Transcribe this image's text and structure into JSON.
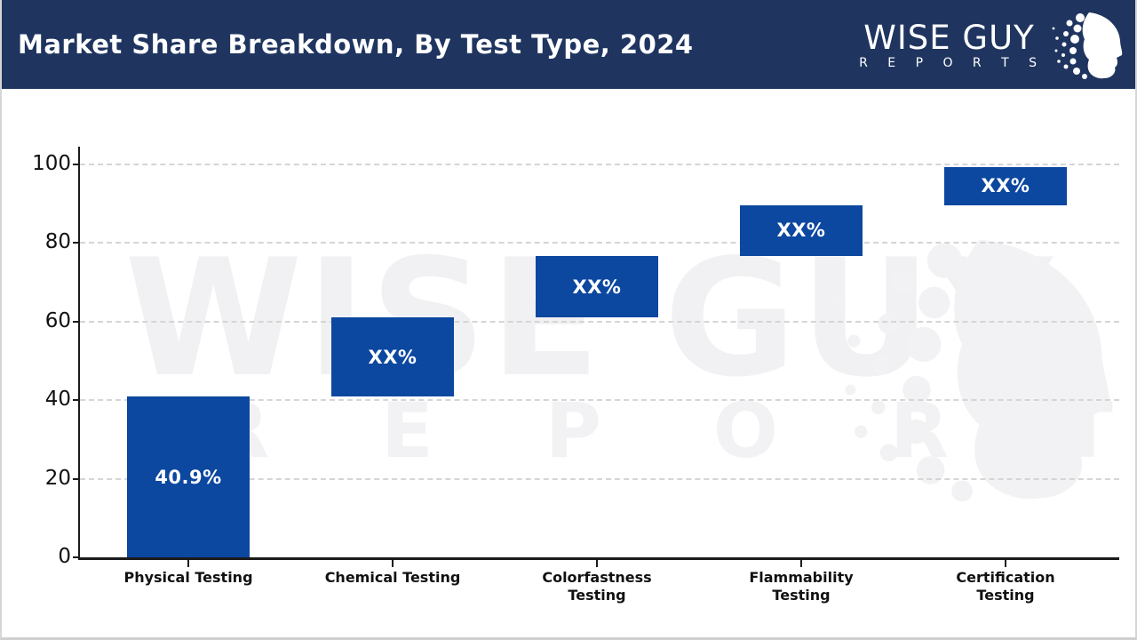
{
  "header": {
    "title": "Market Share Breakdown, By Test Type, 2024",
    "logo": {
      "wordmark": "WISE GUY",
      "subtext": "R E P O R T S",
      "face_icon": "dotted-head-profile"
    }
  },
  "watermark": {
    "line1": "WISE GUY",
    "line2": "R E P O R T S",
    "face_icon": "dotted-head-profile"
  },
  "colors": {
    "header_bg": "#1f3560",
    "bar": "#0c47a0",
    "bar_label": "#ffffff",
    "grid": "#d5d5d5",
    "axis": "#1a1a1a",
    "watermark": "#f1f1f3"
  },
  "chart_data": {
    "type": "bar",
    "variant": "waterfall",
    "title": "Market Share Breakdown, By Test Type, 2024",
    "categories": [
      "Physical Testing",
      "Chemical Testing",
      "Colorfastness Testing",
      "Flammability Testing",
      "Certification Testing"
    ],
    "category_label_lines": [
      [
        "Physical Testing"
      ],
      [
        "Chemical Testing"
      ],
      [
        "Colorfastness",
        "Testing"
      ],
      [
        "Flammability",
        "Testing"
      ],
      [
        "Certification",
        "Testing"
      ]
    ],
    "series": [
      {
        "name": "Market share (%)",
        "segments": [
          {
            "category": "Physical Testing",
            "start": 0,
            "end": 40.9,
            "label": "40.9%"
          },
          {
            "category": "Chemical Testing",
            "start": 40.9,
            "end": 61.0,
            "label": "XX%"
          },
          {
            "category": "Colorfastness Testing",
            "start": 61.0,
            "end": 76.6,
            "label": "XX%"
          },
          {
            "category": "Flammability Testing",
            "start": 76.6,
            "end": 89.5,
            "label": "XX%"
          },
          {
            "category": "Certification Testing",
            "start": 89.5,
            "end": 99.3,
            "label": "XX%"
          }
        ]
      }
    ],
    "xlabel": "",
    "ylabel": "",
    "yticks": [
      0,
      20,
      40,
      60,
      80,
      100
    ],
    "ylim": [
      0,
      104.5
    ],
    "grid": "horizontal-dashed",
    "legend": "none"
  }
}
